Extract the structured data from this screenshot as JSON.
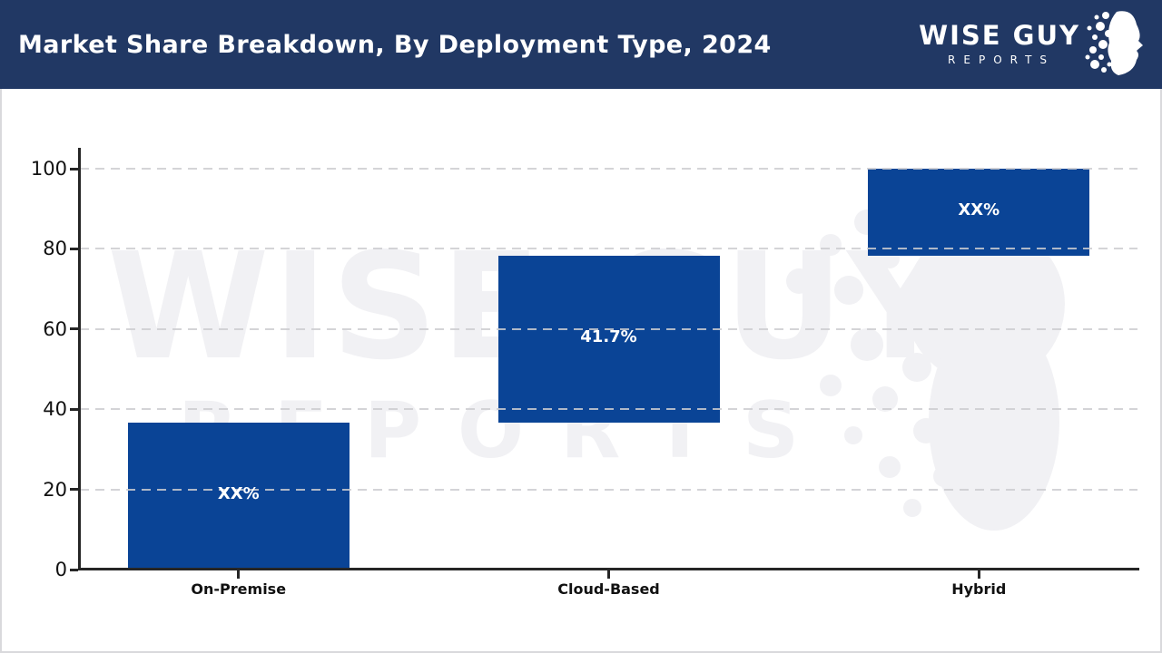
{
  "header": {
    "title": "Market Share Breakdown, By Deployment Type, 2024",
    "logo": {
      "wordmark": "WISE GUY",
      "subtext": "REPORTS"
    }
  },
  "watermark": {
    "line1": "WISE GUY",
    "line2": "REPORTS"
  },
  "chart_data": {
    "type": "bar",
    "variant": "waterfall",
    "title": "Market Share Breakdown, By Deployment Type, 2024",
    "categories": [
      "On-Premise",
      "Cloud-Based",
      "Hybrid"
    ],
    "segments": [
      {
        "category": "On-Premise",
        "start": 0,
        "end": 36.6,
        "label": "XX%"
      },
      {
        "category": "Cloud-Based",
        "start": 36.6,
        "end": 78.3,
        "label": "41.7%"
      },
      {
        "category": "Hybrid",
        "start": 78.3,
        "end": 100,
        "label": "XX%"
      }
    ],
    "values_pct": [
      36.6,
      41.7,
      21.7
    ],
    "ylim": [
      0,
      100
    ],
    "yticks": [
      0,
      20,
      40,
      60,
      80,
      100
    ],
    "grid": "horizontal-dashed",
    "legend": "none",
    "bar_color": "#0a4496",
    "bar_label_color": "#ffffff",
    "axis_color": "#262626"
  },
  "colors": {
    "header_bg": "#213864",
    "content_bg": "#ffffff",
    "watermark": "#f1f1f4",
    "grid": "#ccccd0",
    "frame_border": "#d9d9dc"
  }
}
